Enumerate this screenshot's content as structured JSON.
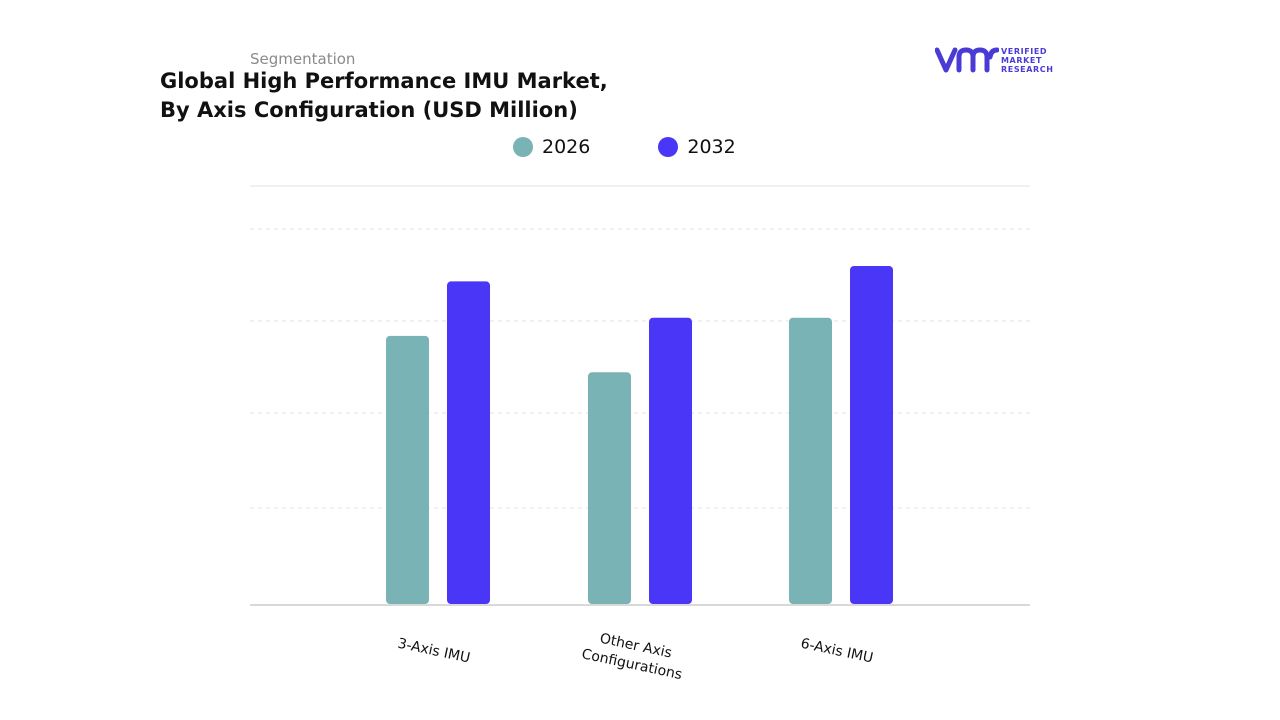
{
  "header": {
    "segment_label": "Segmentation",
    "title_line1": "Global High Performance IMU Market,",
    "title_line2": "By Axis Configuration (USD Million)"
  },
  "logo": {
    "line1": "VERIFIED",
    "line2": "MARKET",
    "line3": "RESEARCH",
    "icon": "vmr-logo-icon",
    "color": "#4b3bd6"
  },
  "chart_data": {
    "type": "bar",
    "title": "Global High Performance IMU Market, By Axis Configuration (USD Million)",
    "categories": [
      "3-Axis IMU",
      "Other Axis Configurations",
      "6-Axis IMU"
    ],
    "category_label_lines": [
      [
        "3-Axis IMU"
      ],
      [
        "Other Axis",
        "Configurations"
      ],
      [
        "6-Axis IMU"
      ]
    ],
    "series": [
      {
        "name": "2026",
        "color": "#7ab3b6",
        "values": [
          2.95,
          2.55,
          3.15
        ]
      },
      {
        "name": "2032",
        "color": "#4a36f6",
        "values": [
          3.55,
          3.15,
          3.72
        ]
      }
    ],
    "xlabel": "",
    "ylabel": "",
    "ylim": [
      0,
      4.6
    ],
    "grid": true,
    "legend_position": "top-center"
  }
}
